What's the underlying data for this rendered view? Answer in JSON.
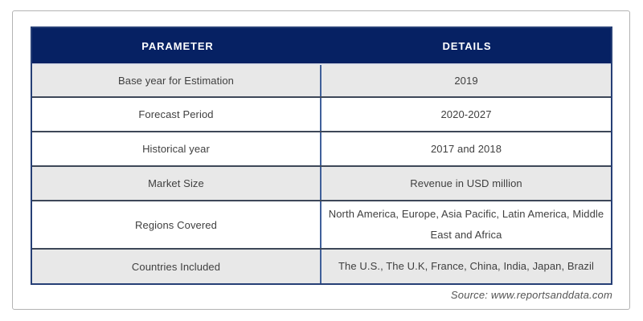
{
  "chart_data": {
    "type": "table",
    "columns": [
      "PARAMETER",
      "DETAILS"
    ],
    "rows": [
      {
        "parameter": "Base year for Estimation",
        "details": "2019",
        "shaded": true
      },
      {
        "parameter": "Forecast Period",
        "details": "2020-2027",
        "shaded": false
      },
      {
        "parameter": "Historical year",
        "details": "2017 and 2018",
        "shaded": false
      },
      {
        "parameter": "Market Size",
        "details": "Revenue in USD million",
        "shaded": true
      },
      {
        "parameter": "Regions Covered",
        "details": "North America, Europe, Asia Pacific, Latin America, Middle East and Africa",
        "shaded": false
      },
      {
        "parameter": "Countries Included",
        "details": "The U.S., The  U.K, France, China, India, Japan, Brazil",
        "shaded": true
      }
    ]
  },
  "source": {
    "label": "Source: www.reportsanddata.com"
  },
  "colors": {
    "header_bg": "#062163",
    "header_text": "#ffffff",
    "shaded_row_bg": "#e8e8e8",
    "row_bg": "#ffffff",
    "outer_border": "#263f76",
    "horizontal_border": "#3d4758",
    "vertical_divider": "#40609a",
    "body_text": "#3f3f3f",
    "source_text": "#545454",
    "card_frame": "#b3b3b3"
  }
}
